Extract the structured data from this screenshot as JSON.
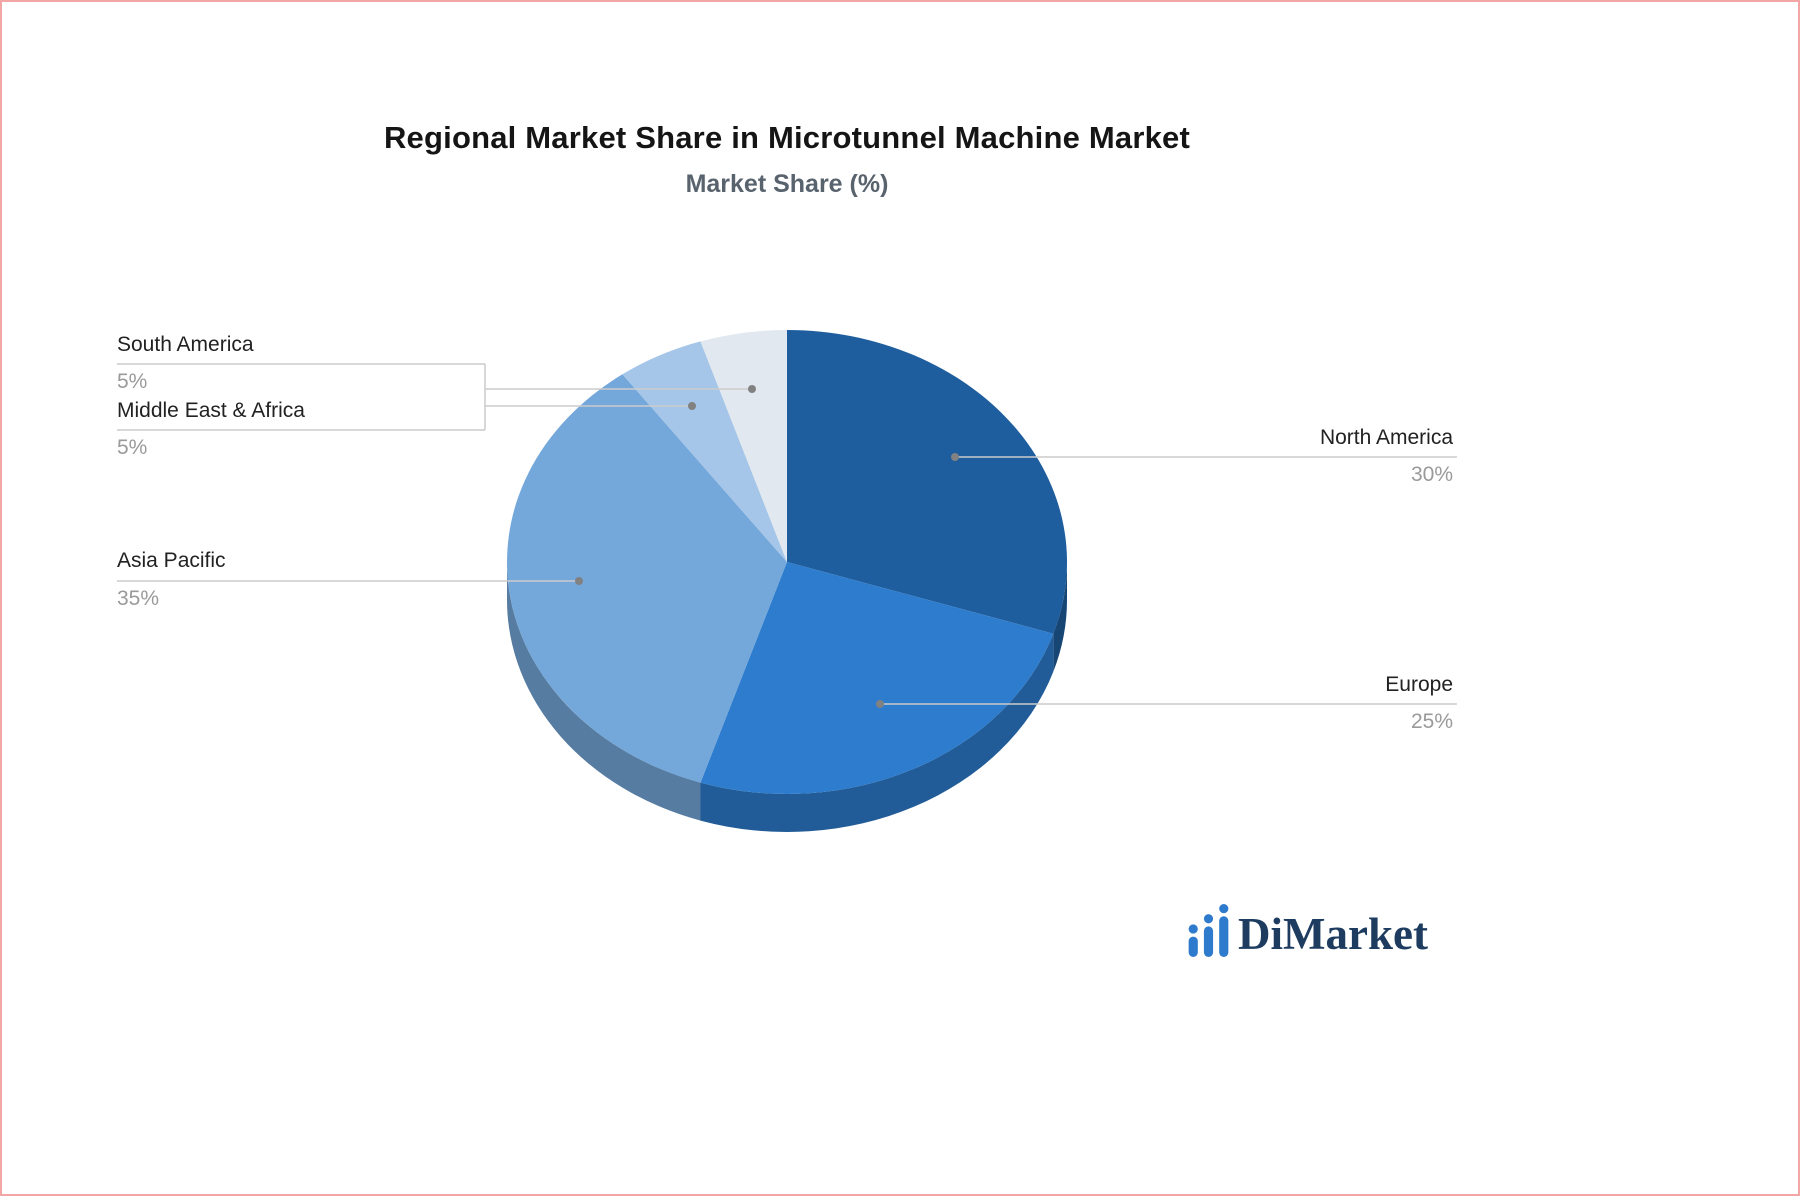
{
  "title": "Regional Market Share in Microtunnel Machine Market",
  "subtitle": "Market Share (%)",
  "logo": {
    "text": "DiMarket"
  },
  "chart_data": {
    "type": "pie",
    "title": "Regional Market Share in Microtunnel Machine Market",
    "subtitle": "Market Share (%)",
    "unit": "%",
    "labels": [
      "North America",
      "Europe",
      "Asia Pacific",
      "Middle East & Africa",
      "South America"
    ],
    "values": [
      30,
      25,
      35,
      5,
      5
    ],
    "colors": [
      "#1f5e9e",
      "#2d7ccd",
      "#74a7da",
      "#a5c6e8",
      "#e2e8ef"
    ],
    "start_angle": "top",
    "direction": "clockwise",
    "effect": "3d-depth",
    "legend": "callout-labels"
  },
  "callouts": {
    "south_america": {
      "label": "South America",
      "value": "5%"
    },
    "middle_east_africa": {
      "label": "Middle East & Africa",
      "value": "5%"
    },
    "asia_pacific": {
      "label": "Asia Pacific",
      "value": "35%"
    },
    "north_america": {
      "label": "North America",
      "value": "30%"
    },
    "europe": {
      "label": "Europe",
      "value": "25%"
    }
  }
}
